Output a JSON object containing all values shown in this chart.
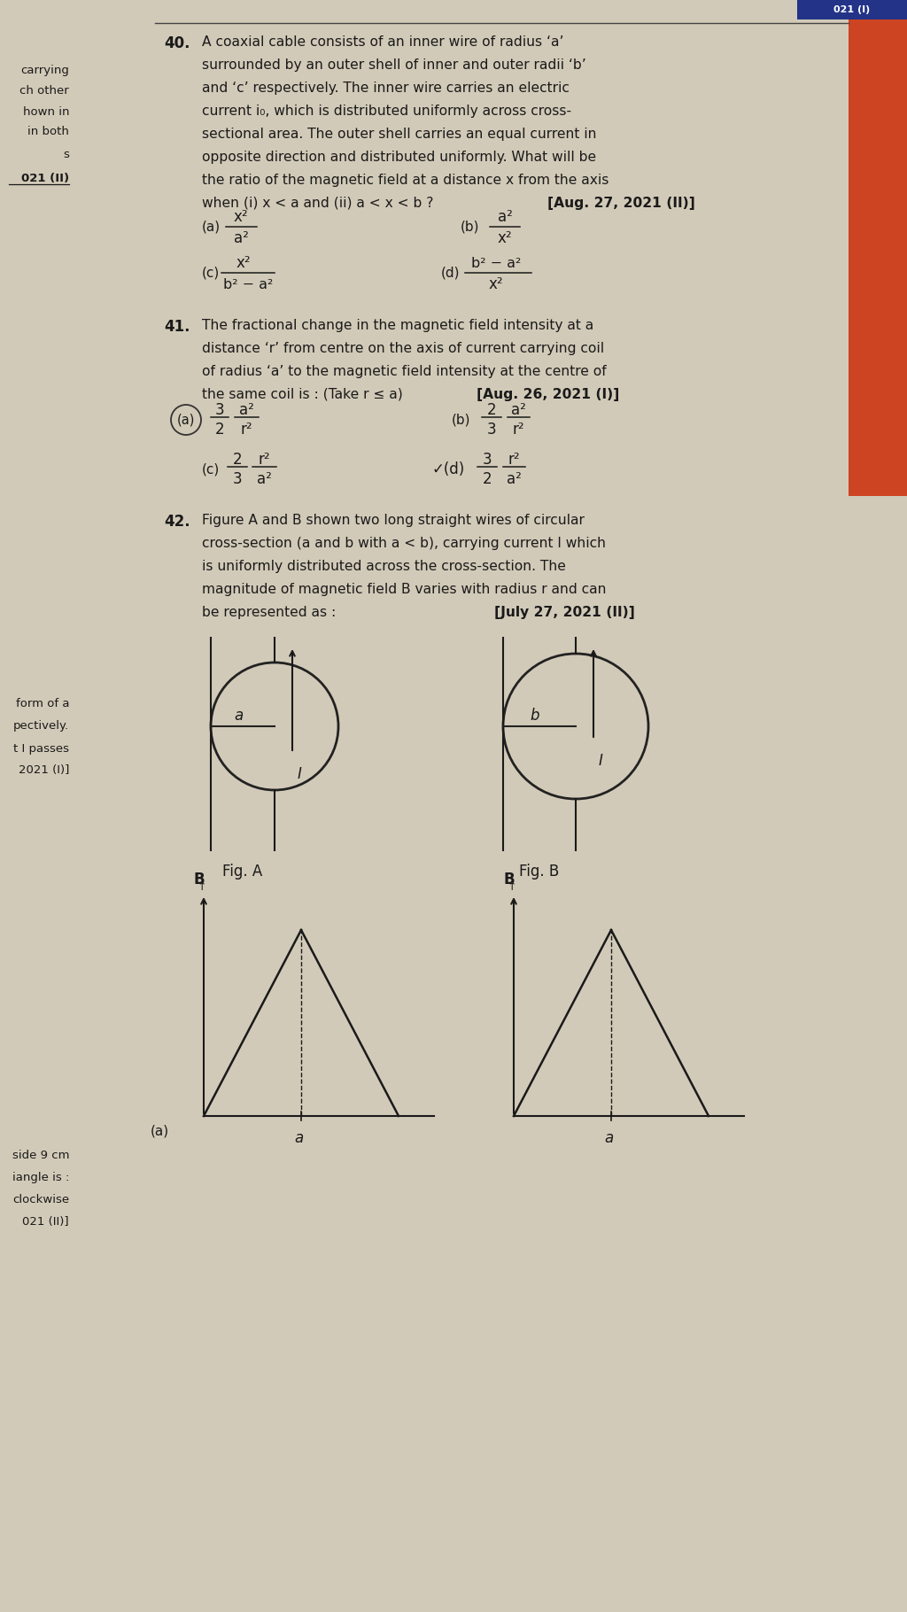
{
  "bg_color": "#cbc3b0",
  "text_color": "#1a1a1a",
  "left_margin_texts": [
    "carrying",
    "ch other",
    "hown in",
    "in both",
    "s",
    "021 (II)"
  ],
  "left_margin_texts2": [
    "form of a",
    "pectively.",
    "t I passes",
    "2021 (I)]"
  ],
  "left_margin_texts3": [
    "side 9 cm",
    "iangle is :",
    "clockwise",
    "021 (II)]"
  ],
  "q40_lines": [
    "A coaxial cable consists of an inner wire of radius ‘a’",
    "surrounded by an outer shell of inner and outer radii ‘b’",
    "and ‘c’ respectively. The inner wire carries an electric",
    "current i₀, which is distributed uniformly across cross-",
    "sectional area. The outer shell carries an equal current in",
    "opposite direction and distributed uniformly. What will be",
    "the ratio of the magnetic field at a distance x from the axis",
    "when (i) x < a and (ii) a < x < b ?"
  ],
  "q40_ref": "[Aug. 27, 2021 (II)]",
  "q41_lines": [
    "The fractional change in the magnetic field intensity at a",
    "distance ‘r’ from centre on the axis of current carrying coil",
    "of radius ‘a’ to the magnetic field intensity at the centre of",
    "the same coil is : (Take r ≤ a)"
  ],
  "q41_ref": "[Aug. 26, 2021 (I)]",
  "q42_lines": [
    "Figure A and B shown two long straight wires of circular",
    "cross-section (a and b with a < b), carrying current I which",
    "is uniformly distributed across the cross-section. The",
    "magnitude of magnetic field B varies with radius r and can",
    "be represented as :"
  ],
  "q42_ref": "[July 27, 2021 (II)]"
}
